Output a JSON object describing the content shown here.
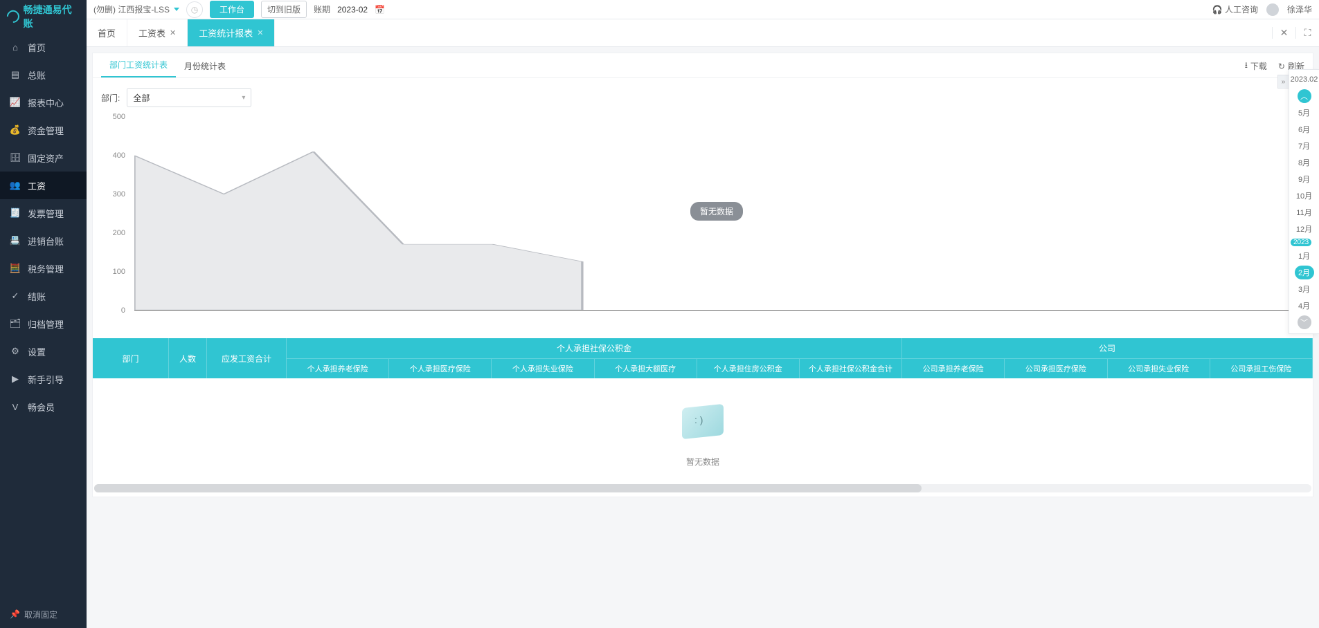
{
  "brand": "畅捷通易代账",
  "sidebar": {
    "items": [
      {
        "label": "首页",
        "icon": "home"
      },
      {
        "label": "总账",
        "icon": "ledger"
      },
      {
        "label": "报表中心",
        "icon": "chart"
      },
      {
        "label": "资金管理",
        "icon": "fund"
      },
      {
        "label": "固定资产",
        "icon": "asset"
      },
      {
        "label": "工资",
        "icon": "salary",
        "active": true
      },
      {
        "label": "发票管理",
        "icon": "invoice"
      },
      {
        "label": "进销台账",
        "icon": "inout"
      },
      {
        "label": "税务管理",
        "icon": "tax"
      },
      {
        "label": "结账",
        "icon": "close"
      },
      {
        "label": "归档管理",
        "icon": "archive"
      },
      {
        "label": "设置",
        "icon": "settings"
      },
      {
        "label": "新手引导",
        "icon": "guide"
      },
      {
        "label": "畅会员",
        "icon": "vip"
      }
    ],
    "footer": "取消固定"
  },
  "topbar": {
    "company": "(勿删) 江西报宝-LSS",
    "workspace": "工作台",
    "switch_old": "切到旧版",
    "period_label": "账期",
    "period_value": "2023-02",
    "consult": "人工咨询",
    "user": "徐泽华"
  },
  "tabs": [
    {
      "label": "首页",
      "closable": false
    },
    {
      "label": "工资表",
      "closable": true
    },
    {
      "label": "工资统计报表",
      "closable": true,
      "active": true
    }
  ],
  "panel": {
    "tabs": [
      {
        "label": "部门工资统计表",
        "active": true
      },
      {
        "label": "月份统计表"
      }
    ],
    "download": "下载",
    "refresh": "刷新",
    "dept_label": "部门:",
    "dept_value": "全部"
  },
  "chart": {
    "type": "area",
    "y_ticks": [
      0,
      100,
      200,
      300,
      400,
      500
    ],
    "ylim": [
      0,
      500
    ],
    "values": [
      400,
      300,
      410,
      170,
      170,
      125
    ],
    "x_count": 14,
    "fill_color": "#e9eaec",
    "stroke_color": "#b7bac0",
    "right_label": "1",
    "no_data_badge": "暂无数据"
  },
  "table": {
    "cols_fixed": [
      "部门",
      "人数",
      "应发工资合计"
    ],
    "group1": {
      "title": "个人承担社保公积金",
      "subs": [
        "个人承担养老保险",
        "个人承担医疗保险",
        "个人承担失业保险",
        "个人承担大额医疗",
        "个人承担住房公积金",
        "个人承担社保公积金合计"
      ]
    },
    "group2": {
      "title": "公司",
      "subs": [
        "公司承担养老保险",
        "公司承担医疗保险",
        "公司承担失业保险",
        "公司承担工伤保险"
      ]
    },
    "empty": "暂无数据"
  },
  "month_strip": {
    "head": "2023.02",
    "months": [
      "5月",
      "6月",
      "7月",
      "8月",
      "9月",
      "10月",
      "11月",
      "12月"
    ],
    "year": "2023",
    "months2": [
      {
        "l": "1月"
      },
      {
        "l": "2月",
        "active": true
      },
      {
        "l": "3月"
      },
      {
        "l": "4月"
      }
    ]
  }
}
